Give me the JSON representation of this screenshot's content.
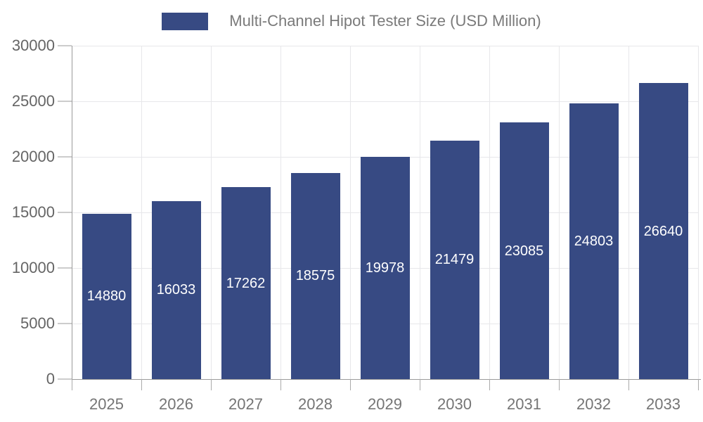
{
  "chart_data": {
    "type": "bar",
    "title": "Multi-Channel Hipot Tester Size (USD Million)",
    "series_name": "Multi-Channel Hipot Tester Size (USD Million)",
    "categories": [
      "2025",
      "2026",
      "2027",
      "2028",
      "2029",
      "2030",
      "2031",
      "2032",
      "2033"
    ],
    "values": [
      14880,
      16033,
      17262,
      18575,
      19978,
      21479,
      23085,
      24803,
      26640
    ],
    "xlabel": "",
    "ylabel": "",
    "ylim": [
      0,
      30000
    ],
    "yticks": [
      0,
      5000,
      10000,
      15000,
      20000,
      25000,
      30000
    ],
    "grid": "both",
    "legend_position": "top-center",
    "colors": {
      "bar": "#374a83",
      "bar_label_text": "#ffffff",
      "axis_line": "#9a9a9a",
      "gridline": "#e7e7ea",
      "y_tick": "#cccccc",
      "x_tick": "#aaaaaa",
      "y_label_text": "#656565",
      "x_label_text": "#757575",
      "legend_text": "#7a7a7a"
    }
  }
}
